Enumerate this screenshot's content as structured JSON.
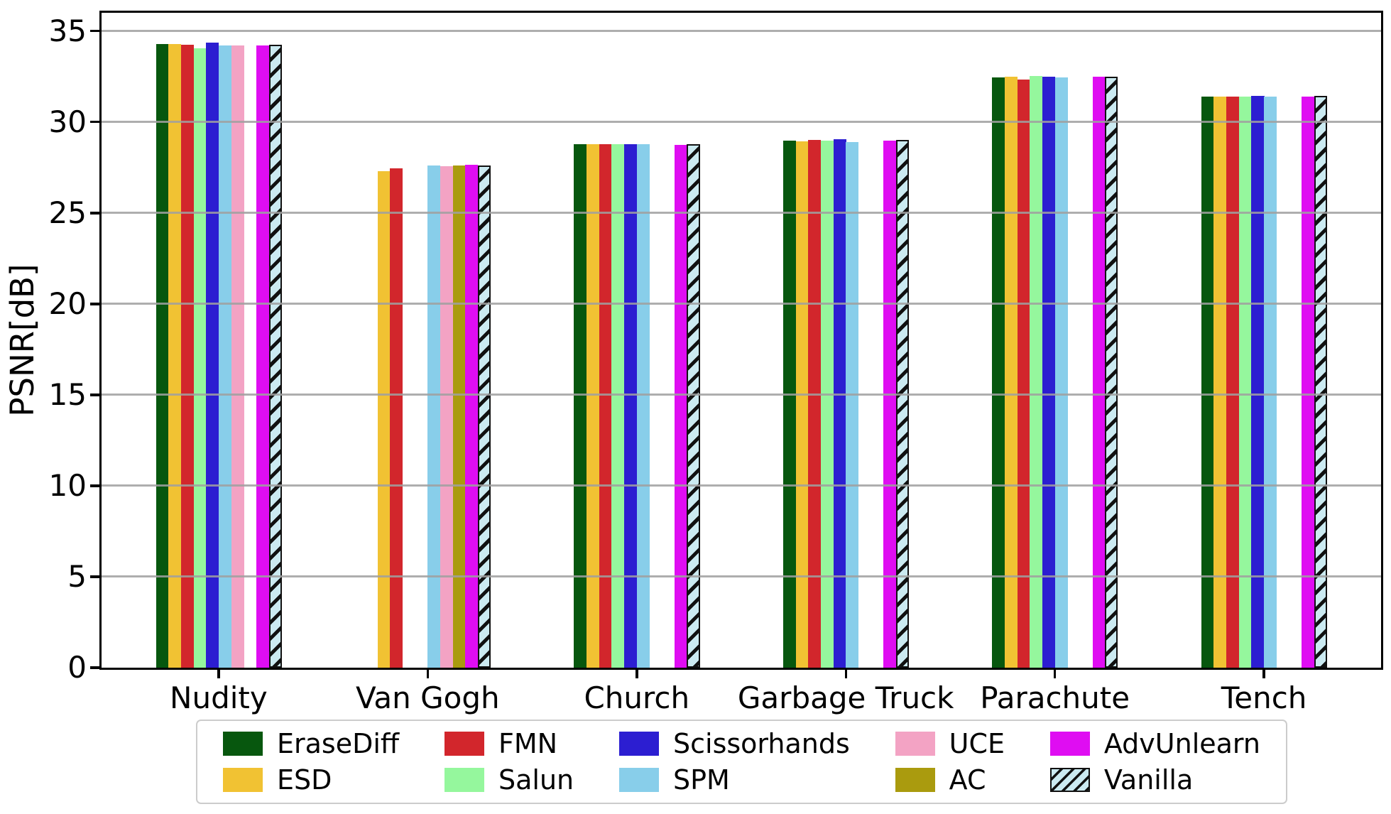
{
  "chart_data": {
    "type": "bar",
    "title": "",
    "xlabel": "",
    "ylabel": "PSNR[dB]",
    "ylim": [
      0,
      36
    ],
    "yticks": [
      0,
      5,
      10,
      15,
      20,
      25,
      30,
      35
    ],
    "grid": "horizontal-above-bars",
    "categories": [
      "Nudity",
      "Van Gogh",
      "Church",
      "Garbage Truck",
      "Parachute",
      "Tench"
    ],
    "series": [
      {
        "name": "EraseDiff",
        "color": "#07570E",
        "hatch": null,
        "values": [
          34.3,
          null,
          28.76,
          28.96,
          32.46,
          31.4
        ]
      },
      {
        "name": "ESD",
        "color": "#F1C233",
        "hatch": null,
        "values": [
          34.28,
          27.3,
          28.78,
          28.93,
          32.5,
          31.4
        ]
      },
      {
        "name": "FMN",
        "color": "#D2262C",
        "hatch": null,
        "values": [
          34.26,
          27.46,
          28.76,
          29.0,
          32.32,
          31.4
        ]
      },
      {
        "name": "Salun",
        "color": "#95F79D",
        "hatch": null,
        "values": [
          34.05,
          null,
          28.76,
          28.96,
          32.52,
          31.4
        ]
      },
      {
        "name": "Scissorhands",
        "color": "#2C1ED1",
        "hatch": null,
        "values": [
          34.36,
          null,
          28.76,
          29.05,
          32.47,
          31.42
        ]
      },
      {
        "name": "SPM",
        "color": "#88CEEA",
        "hatch": null,
        "values": [
          34.22,
          27.6,
          28.78,
          28.9,
          32.46,
          31.4
        ]
      },
      {
        "name": "UCE",
        "color": "#F3A3C4",
        "hatch": null,
        "values": [
          34.2,
          27.56,
          null,
          null,
          null,
          null
        ]
      },
      {
        "name": "AC",
        "color": "#AA9B0E",
        "hatch": null,
        "values": [
          null,
          27.6,
          null,
          null,
          null,
          null
        ]
      },
      {
        "name": "AdvUnlearn",
        "color": "#DF0DF2",
        "hatch": null,
        "values": [
          34.22,
          27.63,
          28.72,
          28.96,
          32.47,
          31.4
        ]
      },
      {
        "name": "Vanilla",
        "color": "#CBEAF1",
        "hatch": "//",
        "edge_color": "#111111",
        "values": [
          34.25,
          27.6,
          28.76,
          29.0,
          32.5,
          31.43
        ]
      }
    ],
    "legend": {
      "position": "bottom-center",
      "columns": 5,
      "rows": 2
    }
  }
}
